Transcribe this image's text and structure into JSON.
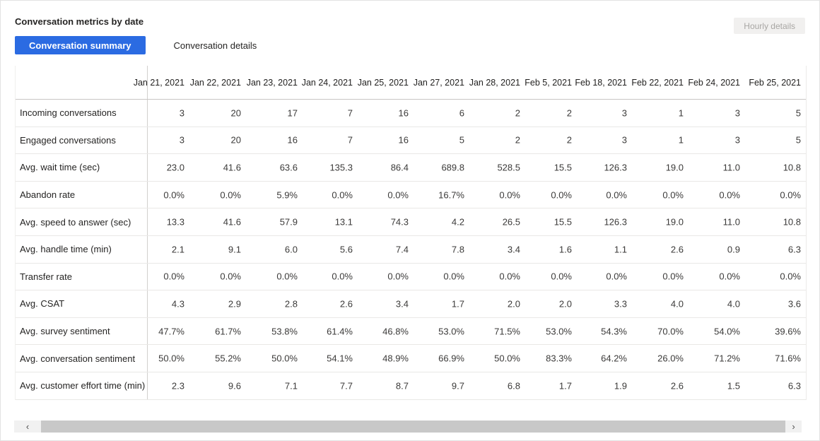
{
  "header": {
    "title": "Conversation metrics by date",
    "tabs": [
      {
        "label": "Conversation summary",
        "active": true
      },
      {
        "label": "Conversation details",
        "active": false
      }
    ],
    "hourly_details_label": "Hourly details"
  },
  "table": {
    "columns": [
      "Jan 21, 2021",
      "Jan 22, 2021",
      "Jan 23, 2021",
      "Jan 24, 2021",
      "Jan 25, 2021",
      "Jan 27, 2021",
      "Jan 28, 2021",
      "Feb 5, 2021",
      "Feb 18, 2021",
      "Feb 22, 2021",
      "Feb 24, 2021",
      "Feb 25, 2021"
    ],
    "rows": [
      {
        "label": "Incoming conversations",
        "values": [
          "3",
          "20",
          "17",
          "7",
          "16",
          "6",
          "2",
          "2",
          "3",
          "1",
          "3",
          "5"
        ]
      },
      {
        "label": "Engaged conversations",
        "values": [
          "3",
          "20",
          "16",
          "7",
          "16",
          "5",
          "2",
          "2",
          "3",
          "1",
          "3",
          "5"
        ]
      },
      {
        "label": "Avg. wait time (sec)",
        "values": [
          "23.0",
          "41.6",
          "63.6",
          "135.3",
          "86.4",
          "689.8",
          "528.5",
          "15.5",
          "126.3",
          "19.0",
          "11.0",
          "10.8"
        ]
      },
      {
        "label": "Abandon rate",
        "values": [
          "0.0%",
          "0.0%",
          "5.9%",
          "0.0%",
          "0.0%",
          "16.7%",
          "0.0%",
          "0.0%",
          "0.0%",
          "0.0%",
          "0.0%",
          "0.0%"
        ]
      },
      {
        "label": "Avg. speed to answer (sec)",
        "values": [
          "13.3",
          "41.6",
          "57.9",
          "13.1",
          "74.3",
          "4.2",
          "26.5",
          "15.5",
          "126.3",
          "19.0",
          "11.0",
          "10.8"
        ]
      },
      {
        "label": "Avg. handle time (min)",
        "values": [
          "2.1",
          "9.1",
          "6.0",
          "5.6",
          "7.4",
          "7.8",
          "3.4",
          "1.6",
          "1.1",
          "2.6",
          "0.9",
          "6.3"
        ]
      },
      {
        "label": "Transfer rate",
        "values": [
          "0.0%",
          "0.0%",
          "0.0%",
          "0.0%",
          "0.0%",
          "0.0%",
          "0.0%",
          "0.0%",
          "0.0%",
          "0.0%",
          "0.0%",
          "0.0%"
        ]
      },
      {
        "label": "Avg. CSAT",
        "values": [
          "4.3",
          "2.9",
          "2.8",
          "2.6",
          "3.4",
          "1.7",
          "2.0",
          "2.0",
          "3.3",
          "4.0",
          "4.0",
          "3.6"
        ]
      },
      {
        "label": "Avg. survey sentiment",
        "values": [
          "47.7%",
          "61.7%",
          "53.8%",
          "61.4%",
          "46.8%",
          "53.0%",
          "71.5%",
          "53.0%",
          "54.3%",
          "70.0%",
          "54.0%",
          "39.6%"
        ]
      },
      {
        "label": "Avg. conversation sentiment",
        "values": [
          "50.0%",
          "55.2%",
          "50.0%",
          "54.1%",
          "48.9%",
          "66.9%",
          "50.0%",
          "83.3%",
          "64.2%",
          "26.0%",
          "71.2%",
          "71.6%"
        ]
      },
      {
        "label": "Avg. customer effort time (min)",
        "values": [
          "2.3",
          "9.6",
          "7.1",
          "7.7",
          "8.7",
          "9.7",
          "6.8",
          "1.7",
          "1.9",
          "2.6",
          "1.5",
          "6.3"
        ]
      }
    ]
  },
  "scrollbar": {
    "left_arrow": "‹",
    "right_arrow": "›"
  },
  "colors": {
    "active_tab": "#2b6be2",
    "disabled_button_bg": "#f1f0ef",
    "disabled_button_text": "#a8a6a3"
  }
}
